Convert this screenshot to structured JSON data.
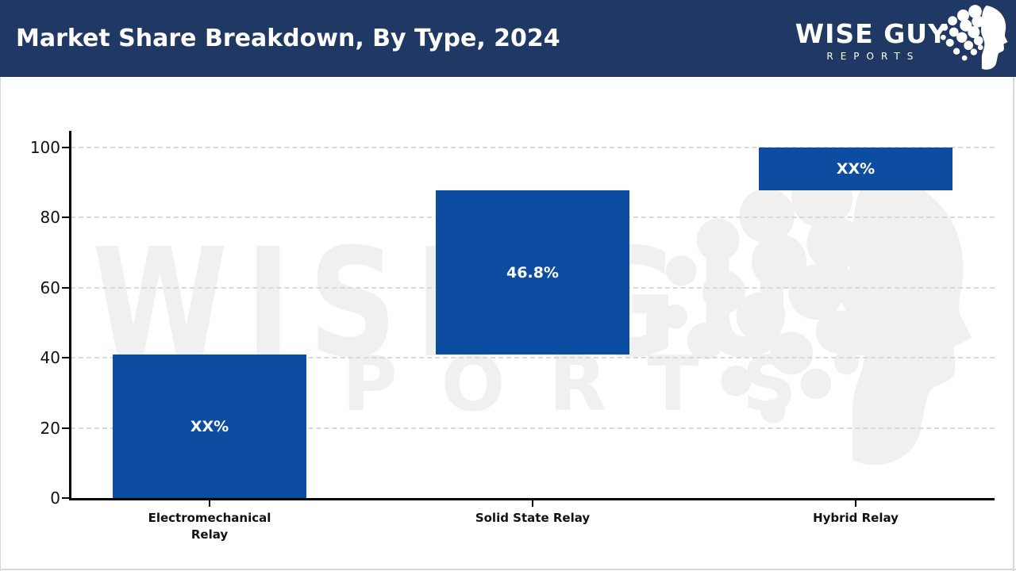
{
  "header": {
    "title": "Market Share Breakdown, By Type, 2024",
    "logo": {
      "line1": "WISE GUY",
      "line2": "REPORTS"
    }
  },
  "watermark": {
    "line1": "WISE GUY",
    "line2": "REPORTS"
  },
  "colors": {
    "header_bg": "#203864",
    "bar": "#0d4da1",
    "bar_label": "#ffffff",
    "grid": "#d9d9d9",
    "axis": "#000000",
    "tick_text": "#111111",
    "watermark": "#f0f0f0",
    "border": "#d8d8d8"
  },
  "chart_data": {
    "type": "bar",
    "subtype": "stacked-breakdown-waterfall",
    "title": "Market Share Breakdown, By Type, 2024",
    "categories": [
      "Electromechanical Relay",
      "Solid State Relay",
      "Hybrid Relay"
    ],
    "bars": [
      {
        "category": "Electromechanical Relay",
        "label": "XX%",
        "start": 0,
        "end": 41
      },
      {
        "category": "Solid State Relay",
        "label": "46.8%",
        "start": 41,
        "end": 87.8
      },
      {
        "category": "Hybrid Relay",
        "label": "XX%",
        "start": 87.8,
        "end": 100
      }
    ],
    "xlabel": "",
    "ylabel": "",
    "ylim": [
      0,
      100
    ],
    "yticks": [
      0,
      20,
      40,
      60,
      80,
      100
    ],
    "grid": "horizontal dashed",
    "legend": "none"
  }
}
